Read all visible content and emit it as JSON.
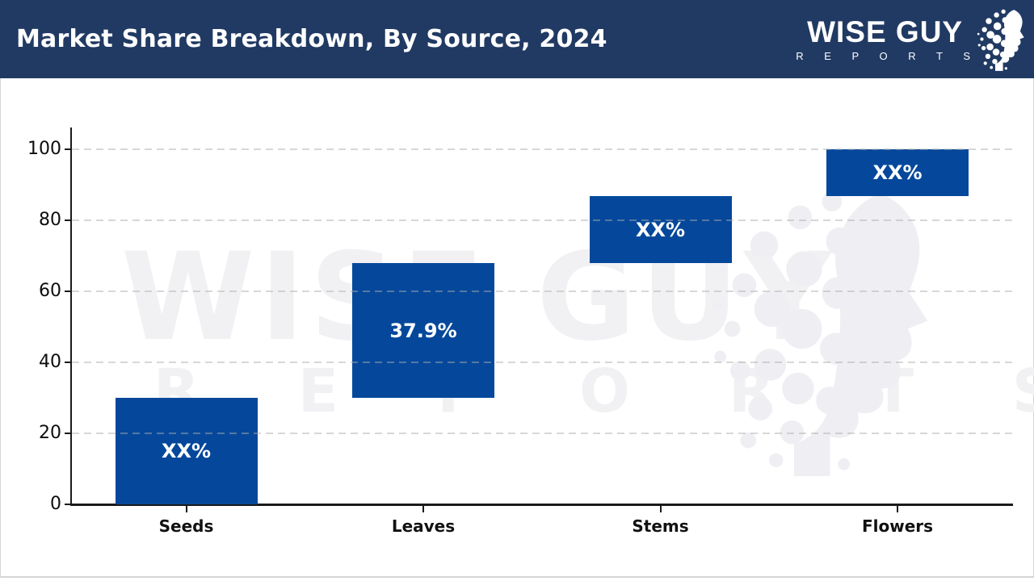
{
  "header": {
    "title": "Market Share Breakdown, By Source, 2024",
    "bg_color": "#213a63",
    "text_color": "#ffffff",
    "brand": {
      "line1": "WISE GUY",
      "line2": "R E P O R T S"
    }
  },
  "watermark": {
    "line1": "WISE GUY",
    "line2": "R E P O R T S"
  },
  "chart_data": {
    "type": "bar",
    "subtype": "waterfall-floating-bars",
    "title": "Market Share Breakdown, By Source, 2024",
    "categories": [
      "Seeds",
      "Leaves",
      "Stems",
      "Flowers"
    ],
    "segments": [
      {
        "category": "Seeds",
        "start": 0,
        "end": 30.0,
        "label": "XX%"
      },
      {
        "category": "Leaves",
        "start": 30.0,
        "end": 67.9,
        "label": "37.9%"
      },
      {
        "category": "Stems",
        "start": 67.9,
        "end": 86.8,
        "label": "XX%"
      },
      {
        "category": "Flowers",
        "start": 86.8,
        "end": 100.0,
        "label": "XX%"
      }
    ],
    "xlabel": "",
    "ylabel": "",
    "ylim": [
      0,
      106
    ],
    "yticks": [
      0,
      20,
      40,
      60,
      80,
      100
    ],
    "grid": "horizontal-dashed",
    "legend": "none",
    "bar_color": "#05489b",
    "bar_label_color": "#ffffff",
    "axis_color": "#1a1a1a"
  }
}
